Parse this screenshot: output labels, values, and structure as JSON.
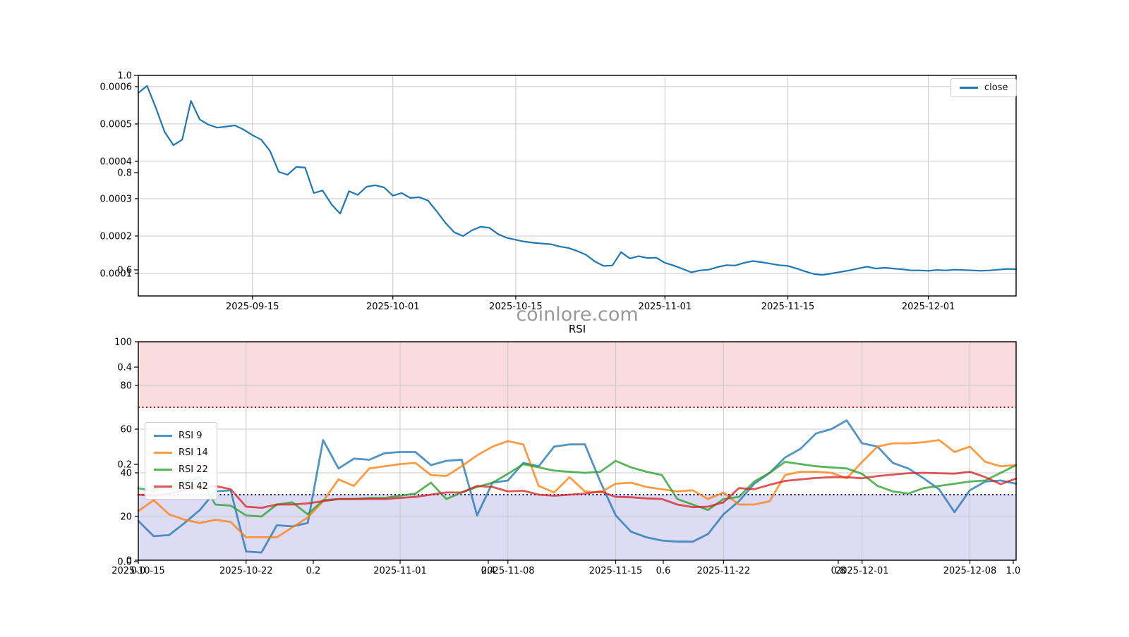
{
  "watermark_text": "coinlore.com",
  "colors": {
    "axis": "#000000",
    "grid": "#c8c8c8",
    "overbought_band": "#fadcdc",
    "oversold_band": "#dddcf4",
    "overbought_line": "#cc0000",
    "oversold_line": "#00008b",
    "watermark": "#999999"
  },
  "ghost_axis": {
    "x_labels": [
      "0.0",
      "0.2",
      "0.4",
      "0.6",
      "0.8",
      "1.0"
    ],
    "y_labels": [
      "1.0",
      "0.8",
      "0.6",
      "0.4",
      "0.2",
      "0.0"
    ]
  },
  "chart_data": [
    {
      "type": "line",
      "title": "",
      "legend_position": "upper right",
      "grid": true,
      "x_start": "2025-09-02",
      "x_end": "2025-12-11",
      "x_ticks": [
        "2025-09-15",
        "2025-10-01",
        "2025-10-15",
        "2025-11-01",
        "2025-11-15",
        "2025-12-01"
      ],
      "y_ticks": [
        0.0006,
        0.0005,
        0.0004,
        0.0003,
        0.0002,
        0.0001
      ],
      "ylim": [
        3.96e-05,
        0.00063
      ],
      "series": [
        {
          "name": "close",
          "color": "#1f77b4",
          "opacity": 1,
          "width": 2.2,
          "start_date": "2025-09-02",
          "interval_days": 1,
          "values": [
            0.000583,
            0.000602,
            0.000543,
            0.000479,
            0.000443,
            0.000458,
            0.000562,
            0.000512,
            0.000498,
            0.00049,
            0.000493,
            0.000496,
            0.000485,
            0.00047,
            0.000458,
            0.000428,
            0.000372,
            0.000364,
            0.000385,
            0.000383,
            0.000315,
            0.000322,
            0.000285,
            0.00026,
            0.00032,
            0.00031,
            0.000332,
            0.000336,
            0.00033,
            0.000308,
            0.000315,
            0.000302,
            0.000304,
            0.000295,
            0.000266,
            0.000235,
            0.00021,
            0.0002,
            0.000215,
            0.000225,
            0.000222,
            0.000205,
            0.000195,
            0.00019,
            0.000185,
            0.000182,
            0.00018,
            0.000178,
            0.000172,
            0.000168,
            0.00016,
            0.00015,
            0.000132,
            0.00012,
            0.000121,
            0.000157,
            0.00014,
            0.000146,
            0.000141,
            0.000142,
            0.000128,
            0.000121,
            0.000112,
            0.000103,
            0.000108,
            0.00011,
            0.000117,
            0.000122,
            0.000121,
            0.000128,
            0.000133,
            0.00013,
            0.000126,
            0.000122,
            0.00012,
            0.000113,
            0.000105,
            9.8e-05,
            9.6e-05,
            0.0001,
            0.000104,
            0.000108,
            0.000113,
            0.000118,
            0.000113,
            0.000115,
            0.000113,
            0.000111,
            0.000108,
            0.000108,
            0.000107,
            0.000109,
            0.000108,
            0.00011,
            0.000109,
            0.000108,
            0.000107,
            0.000108,
            0.00011,
            0.000112,
            0.000111
          ]
        }
      ]
    },
    {
      "type": "line",
      "title": "RSI",
      "legend_position": "center left",
      "grid": true,
      "x_start": "2025-10-15",
      "x_end": "2025-12-11",
      "x_ticks": [
        "2025-10-15",
        "2025-10-22",
        "2025-11-01",
        "2025-11-08",
        "2025-11-15",
        "2025-11-22",
        "2025-12-01",
        "2025-12-08"
      ],
      "y_ticks": [
        100,
        80,
        60,
        40,
        20,
        0
      ],
      "ylim": [
        0,
        100
      ],
      "bands": [
        {
          "from": 70,
          "to": 100,
          "label": "overbought"
        },
        {
          "from": 0,
          "to": 30,
          "label": "oversold"
        }
      ],
      "hlines": [
        {
          "y": 70,
          "label": "overbought-threshold"
        },
        {
          "y": 30,
          "label": "oversold-threshold"
        }
      ],
      "series": [
        {
          "name": "RSI 9",
          "color": "#1f77b4",
          "opacity": 0.78,
          "width": 2.8,
          "start_date": "2025-10-15",
          "interval_days": 1,
          "values": [
            18,
            11,
            11.5,
            17,
            23,
            31.5,
            32,
            4,
            3.5,
            16,
            15.5,
            17,
            55,
            42,
            46.5,
            46,
            49,
            49.5,
            49.5,
            43.5,
            45.5,
            46,
            20.5,
            35.5,
            36.5,
            44.5,
            43,
            52,
            53,
            53,
            36,
            20.5,
            13,
            10.5,
            9,
            8.5,
            8.5,
            12,
            21,
            27,
            35,
            40,
            47,
            51,
            58,
            60,
            64,
            53.5,
            52,
            44.5,
            42,
            37.5,
            32.5,
            22,
            32,
            36,
            36.5,
            35
          ]
        },
        {
          "name": "RSI 14",
          "color": "#ff7f0e",
          "opacity": 0.78,
          "width": 2.8,
          "start_date": "2025-10-15",
          "interval_days": 1,
          "values": [
            22.5,
            27.5,
            21,
            18.5,
            17,
            18.5,
            17.5,
            10.5,
            10.5,
            10.5,
            15,
            19.5,
            27,
            37,
            34,
            42,
            43,
            44,
            44.5,
            39,
            38.5,
            43,
            48,
            52,
            54.5,
            53,
            34,
            31,
            38,
            31.5,
            31,
            35,
            35.5,
            33.5,
            32.5,
            31.5,
            32,
            28,
            31,
            25.5,
            25.5,
            27,
            39,
            40.5,
            40.5,
            40,
            37.5,
            45,
            52,
            53.5,
            53.5,
            54,
            55,
            49.5,
            52,
            45,
            43,
            43.5
          ]
        },
        {
          "name": "RSI 22",
          "color": "#2ca02c",
          "opacity": 0.78,
          "width": 2.8,
          "start_date": "2025-10-15",
          "interval_days": 1,
          "values": [
            33,
            31.5,
            34,
            36,
            38,
            25.5,
            25,
            20.5,
            20,
            25.5,
            26.5,
            21,
            27.5,
            28,
            28,
            28.5,
            28.5,
            29.5,
            30.5,
            35.5,
            28,
            31,
            33.5,
            35.5,
            39.5,
            44,
            42.5,
            41,
            40.5,
            40,
            40.5,
            45.5,
            42.5,
            40.5,
            39,
            28,
            25.5,
            23,
            28,
            29,
            36,
            40,
            45,
            44,
            43,
            42.5,
            42,
            39.5,
            34,
            31.5,
            30.5,
            33,
            34,
            35,
            36,
            36.5,
            40,
            43.5
          ]
        },
        {
          "name": "RSI 42",
          "color": "#d62728",
          "opacity": 0.78,
          "width": 2.8,
          "start_date": "2025-10-15",
          "interval_days": 1,
          "values": [
            30,
            29.5,
            30.5,
            32,
            33,
            34,
            32.5,
            24.5,
            24,
            25.5,
            25.5,
            26,
            27,
            28,
            28,
            28,
            28,
            28.5,
            29,
            30,
            31,
            31,
            34,
            33.5,
            31.5,
            31.8,
            30,
            29.5,
            30,
            30.5,
            31.5,
            29,
            28.8,
            28.3,
            28,
            25.5,
            24.3,
            24.5,
            26.5,
            33,
            32.5,
            34.5,
            36.3,
            37,
            37.6,
            38,
            38,
            37.5,
            38.5,
            39.2,
            39.8,
            40,
            39.8,
            39.6,
            40.5,
            38,
            34.8,
            37.4
          ]
        }
      ]
    }
  ]
}
